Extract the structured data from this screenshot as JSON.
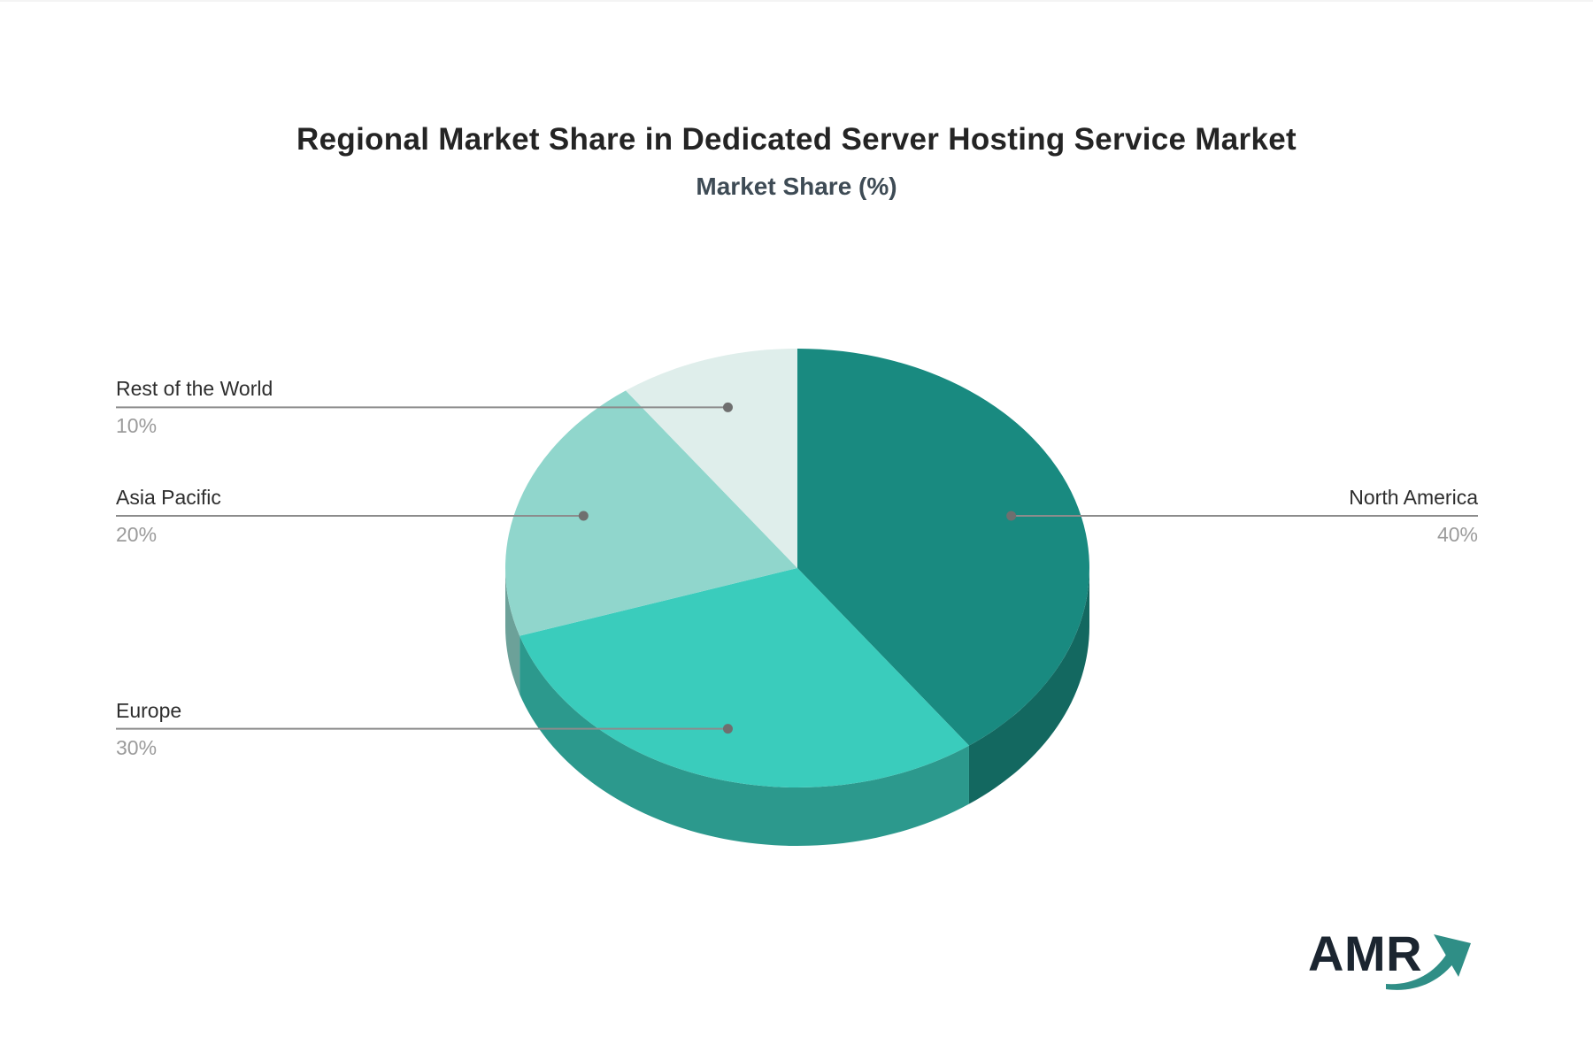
{
  "chart_data": {
    "type": "pie",
    "style": "3d",
    "title": "Regional Market Share in Dedicated Server Hosting Service Market",
    "subtitle": "Market Share (%)",
    "unit": "%",
    "start_angle": "top",
    "direction": "clockwise",
    "legend": "none",
    "categories": [
      "North America",
      "Europe",
      "Asia Pacific",
      "Rest of the World"
    ],
    "values": [
      40,
      30,
      20,
      10
    ],
    "slices": [
      {
        "label": "North America",
        "value": 40,
        "value_label": "40%",
        "color": "#198A80",
        "label_side": "right"
      },
      {
        "label": "Europe",
        "value": 30,
        "value_label": "30%",
        "color": "#3ACCBC",
        "label_side": "left"
      },
      {
        "label": "Asia Pacific",
        "value": 20,
        "value_label": "20%",
        "color": "#90D6CC",
        "label_side": "left"
      },
      {
        "label": "Rest of the World",
        "value": 10,
        "value_label": "10%",
        "color": "#DFEEEB",
        "label_side": "left"
      }
    ],
    "leader_line_color": "#8C8C8C",
    "leader_dot_color": "#6F6F6F",
    "label_text_color": "#2E2E2E",
    "value_text_color": "#9B9B9B"
  },
  "logo": {
    "text": "AMR",
    "arrow_icon": "trend-up-arrow",
    "text_color": "#1B2530",
    "arrow_color": "#2F8E86"
  }
}
